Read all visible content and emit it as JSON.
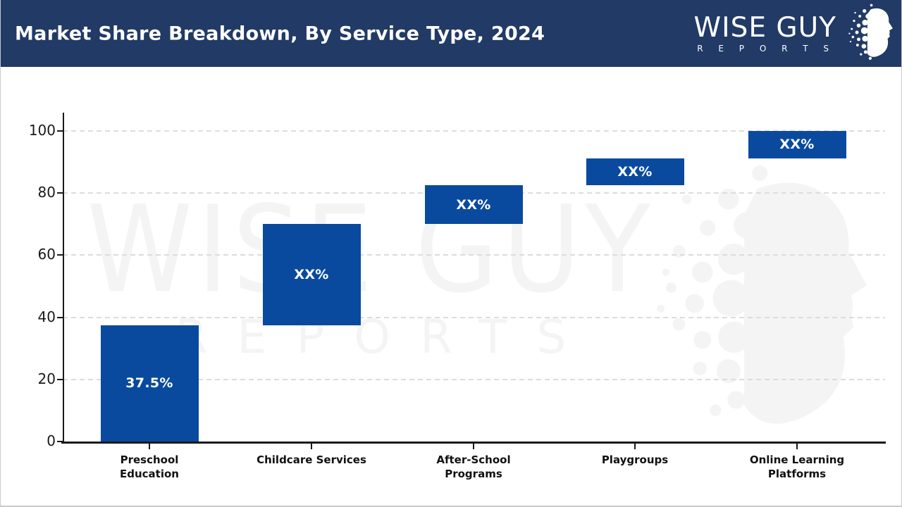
{
  "header": {
    "title": "Market Share Breakdown, By Service Type, 2024",
    "logo": {
      "line1": "WISE GUY",
      "line2": "R E P O R T S"
    }
  },
  "watermark": {
    "line1": "WISE GUY",
    "line2": "REPORTS"
  },
  "colors": {
    "header_bg": "#213a66",
    "bar": "#0a4a9e",
    "grid": "#dcdcdc",
    "axis": "#1a1a1a",
    "bar_label": "#ffffff",
    "watermark": "#f4f4f4"
  },
  "chart_data": {
    "type": "bar",
    "subtype": "waterfall",
    "title": "Market Share Breakdown, By Service Type, 2024",
    "xlabel": "",
    "ylabel": "",
    "ylim": [
      0,
      108
    ],
    "yticks": [
      0,
      20,
      40,
      60,
      80,
      100
    ],
    "grid": "horizontal-dashed",
    "legend": "none",
    "categories": [
      "Preschool\nEducation",
      "Childcare Services",
      "After-School\nPrograms",
      "Playgroups",
      "Online Learning\nPlatforms"
    ],
    "segments": [
      {
        "category": "Preschool Education",
        "start": 0,
        "end": 37.5,
        "value": 37.5,
        "label": "37.5%"
      },
      {
        "category": "Childcare Services",
        "start": 37.5,
        "end": 70,
        "value": 32.5,
        "label": "XX%"
      },
      {
        "category": "After-School Programs",
        "start": 70,
        "end": 82.5,
        "value": 12.5,
        "label": "XX%"
      },
      {
        "category": "Playgroups",
        "start": 82.5,
        "end": 91.25,
        "value": 8.75,
        "label": "XX%"
      },
      {
        "category": "Online Learning Platforms",
        "start": 91.25,
        "end": 100,
        "value": 8.75,
        "label": "XX%"
      }
    ]
  }
}
